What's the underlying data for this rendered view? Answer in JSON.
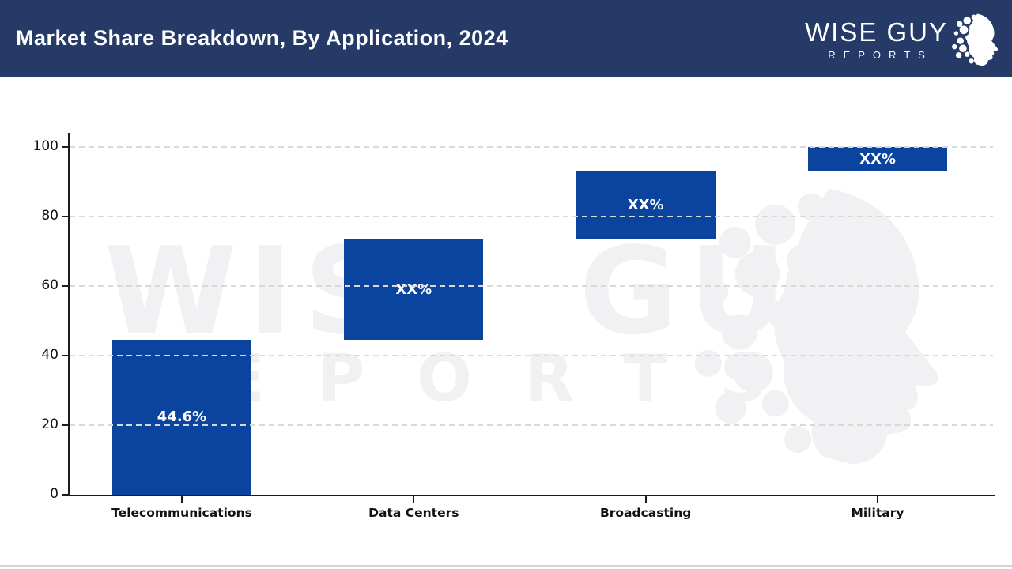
{
  "header": {
    "title": "Market Share Breakdown, By Application, 2024"
  },
  "logo": {
    "line1": "WISE GUY",
    "line2": "REPORTS"
  },
  "watermark": {
    "line1": "WISE GUY",
    "line2": "REPORTS"
  },
  "chart_data": {
    "type": "bar",
    "subtype": "waterfall",
    "title": "Market Share Breakdown, By Application, 2024",
    "categories": [
      "Telecommunications",
      "Data Centers",
      "Broadcasting",
      "Military"
    ],
    "segments": [
      {
        "category": "Telecommunications",
        "start": 0,
        "end": 44.6,
        "value": 44.6,
        "label": "44.6%"
      },
      {
        "category": "Data Centers",
        "start": 44.6,
        "end": 73.5,
        "value": 28.9,
        "label": "XX%"
      },
      {
        "category": "Broadcasting",
        "start": 73.5,
        "end": 92.9,
        "value": 19.4,
        "label": "XX%"
      },
      {
        "category": "Military",
        "start": 92.9,
        "end": 100,
        "value": 7.1,
        "label": "XX%"
      }
    ],
    "xlabel": "",
    "ylabel": "",
    "ylim": [
      0,
      100
    ],
    "yticks": [
      0,
      20,
      40,
      60,
      80,
      100
    ],
    "grid": "horizontal-dashed",
    "legend": "none",
    "bar_color": "#0a449e",
    "bar_label_color": "#ffffff",
    "header_navy": "#253a66",
    "watermark_color": "#f1f1f4"
  }
}
